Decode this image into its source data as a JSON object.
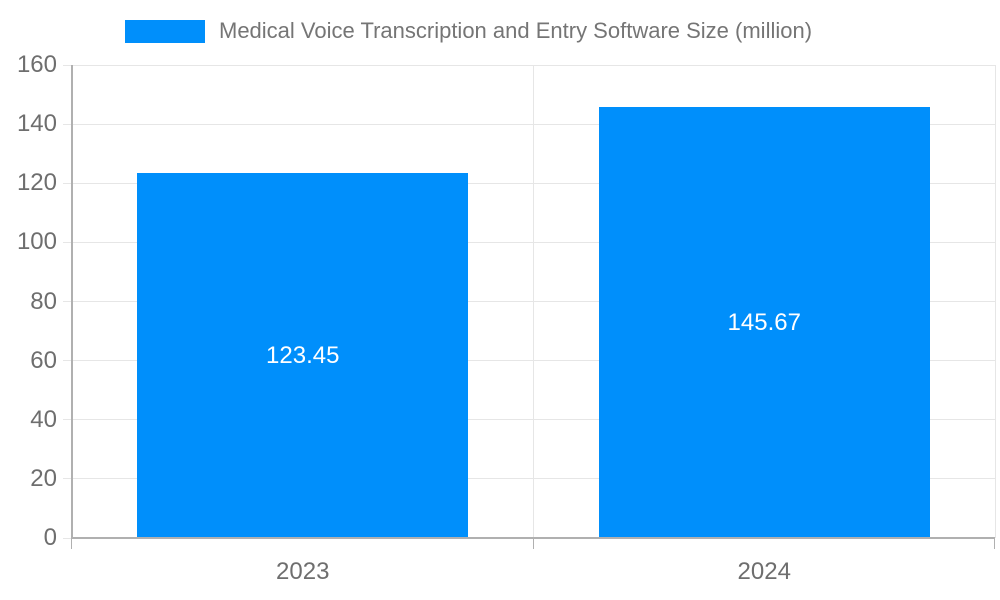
{
  "chart_data": {
    "type": "bar",
    "title": "Medical Voice Transcription and Entry Software Size (million)",
    "categories": [
      "2023",
      "2024"
    ],
    "values": [
      123.45,
      145.67
    ],
    "value_labels": [
      "123.45",
      "145.67"
    ],
    "series": [
      {
        "name": "Medical Voice Transcription and Entry Software Size (million)",
        "values": [
          123.45,
          145.67
        ]
      }
    ],
    "xlabel": "",
    "ylabel": "",
    "ylim": [
      0,
      160
    ],
    "ytick_step": 20,
    "y_tick_labels": [
      "0",
      "20",
      "40",
      "60",
      "80",
      "100",
      "120",
      "140",
      "160"
    ],
    "grid": true,
    "legend_position": "top",
    "bar_width_ratio": 0.717,
    "colors": {
      "bar": "#008FFB",
      "text": "#6e6e6e",
      "grid": "#e6e6e6",
      "axis": "#b0b0b0",
      "value_label": "#ffffff",
      "background": "#ffffff"
    }
  },
  "legend": {
    "label": "Medical Voice Transcription and Entry Software Size (million)"
  }
}
